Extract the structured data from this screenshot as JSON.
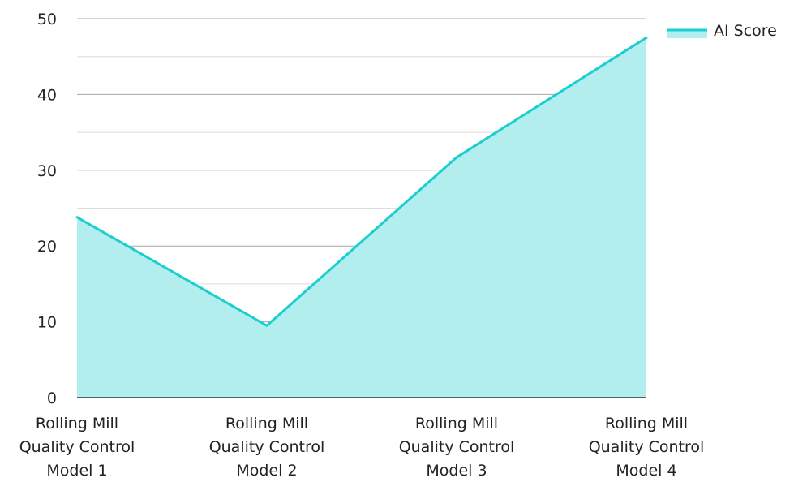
{
  "chart_data": {
    "type": "area",
    "categories": [
      "Rolling Mill Quality Control Model 1",
      "Rolling Mill Quality Control Model 2",
      "Rolling Mill Quality Control Model 3",
      "Rolling Mill Quality Control Model 4"
    ],
    "category_lines": [
      [
        "Rolling Mill",
        "Quality Control",
        "Model 1"
      ],
      [
        "Rolling Mill",
        "Quality Control",
        "Model 2"
      ],
      [
        "Rolling Mill",
        "Quality Control",
        "Model 3"
      ],
      [
        "Rolling Mill",
        "Quality Control",
        "Model 4"
      ]
    ],
    "series": [
      {
        "name": "AI Score",
        "values": [
          23.8,
          9.5,
          31.7,
          47.5
        ]
      }
    ],
    "ylim": [
      0,
      50
    ],
    "yticks": [
      0,
      10,
      20,
      30,
      40,
      50
    ],
    "grid": true,
    "legend": "top-right",
    "colors": {
      "line": "#1ccfcf",
      "fill": "#b2eeee",
      "grid_major": "#a8a8a8",
      "grid_minor": "#dedede",
      "axis": "#333333"
    }
  }
}
